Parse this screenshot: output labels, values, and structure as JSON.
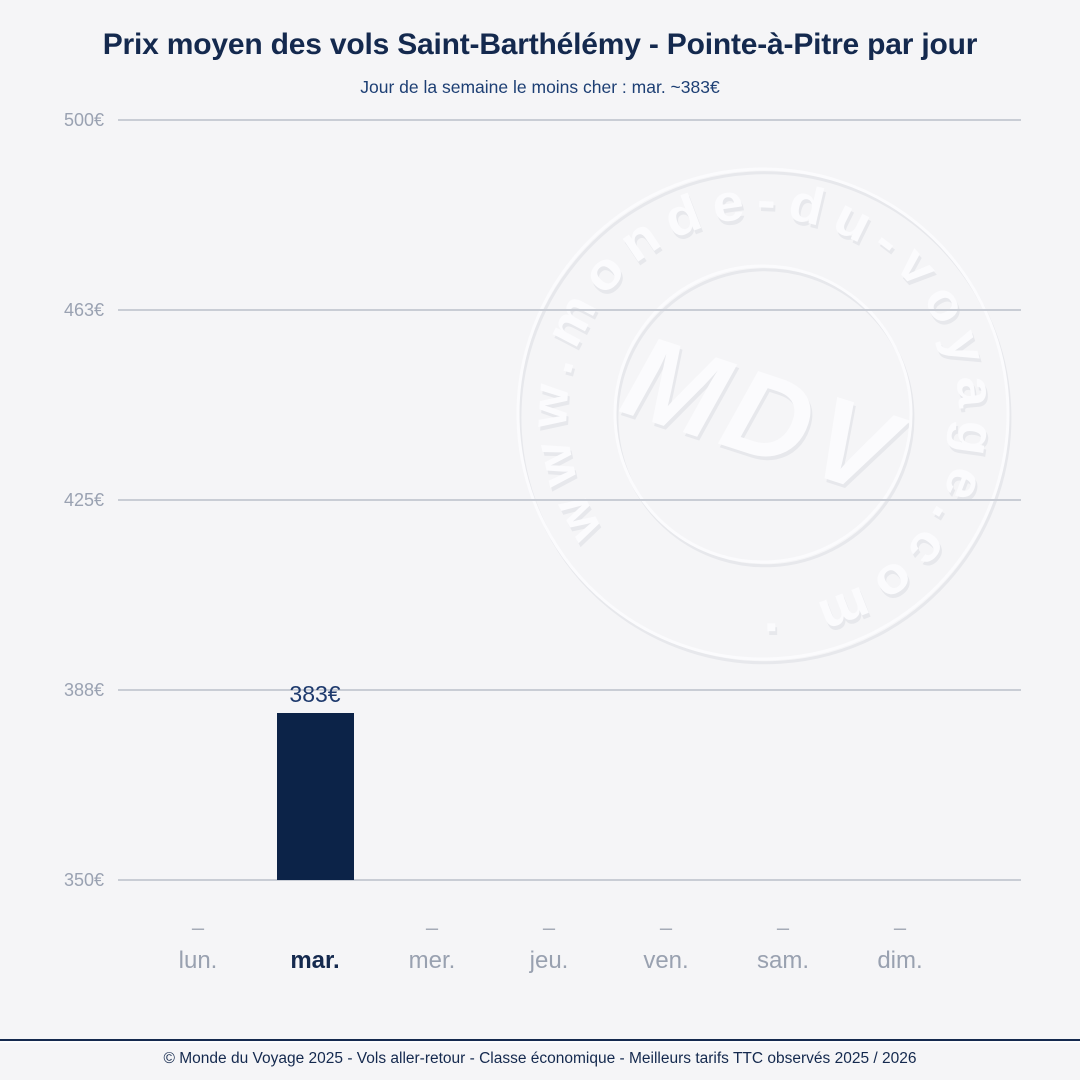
{
  "page_background": "#f5f5f7",
  "header": {
    "title": "Prix moyen des vols Saint-Barthélémy - Pointe-à-Pitre par jour",
    "subtitle": "Jour de la semaine le moins cher : mar. ~383€"
  },
  "chart_data": {
    "type": "bar",
    "title": "Prix moyen des vols Saint-Barthélémy - Pointe-à-Pitre par jour",
    "subtitle": "Jour de la semaine le moins cher : mar. ~383€",
    "categories": [
      "lun.",
      "mar.",
      "mer.",
      "jeu.",
      "ven.",
      "sam.",
      "dim."
    ],
    "values": [
      null,
      383,
      null,
      null,
      null,
      null,
      null
    ],
    "bar_value_labels": [
      null,
      "383€",
      null,
      null,
      null,
      null,
      null
    ],
    "no_data_marker": "–",
    "y_ticks": [
      "500€",
      "463€",
      "425€",
      "388€",
      "350€"
    ],
    "ylim": [
      350,
      500
    ],
    "grid": true,
    "legend": "none",
    "highlighted_category": "mar.",
    "colors": {
      "bar": "#0c2348",
      "grid_line": "#c9cdd5",
      "y_tick_label": "#9aa2b2",
      "day_label": "#99a1b0",
      "day_label_active": "#14294e",
      "value_label": "#1e3a6d",
      "no_data_marker": "#a5abb7"
    }
  },
  "watermark": {
    "ring_text": "www.monde-du-voyage.com ·",
    "center_text": "MDV"
  },
  "footer": {
    "text": "© Monde du Voyage 2025 - Vols aller-retour - Classe économique - Meilleurs tarifs TTC observés 2025 / 2026"
  }
}
